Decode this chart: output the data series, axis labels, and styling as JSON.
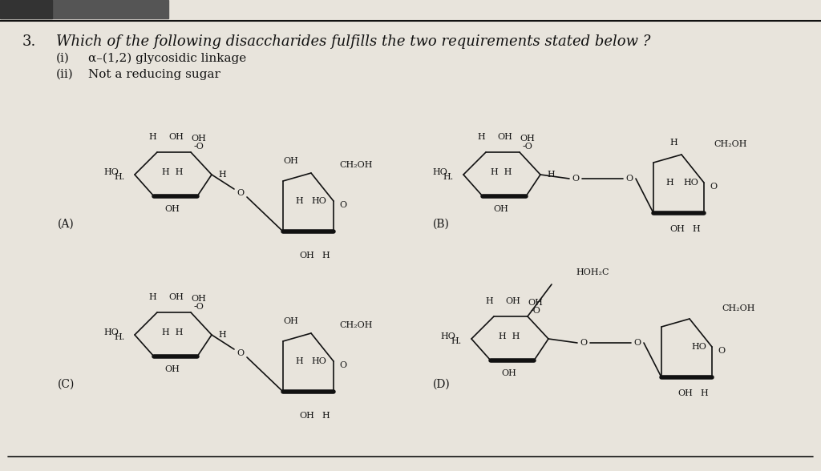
{
  "background_color": "#e8e4dc",
  "text_color": "#1a1a1a",
  "title_num": "3.",
  "title_text": "Which of the following disaccharides fulfills the two requirements stated below ?",
  "req1_num": "(i)",
  "req1_text": "α–(1,2) glycosidic linkage",
  "req2_num": "(ii)",
  "req2_text": "Not a reducing sugar",
  "label_A": "(A)",
  "label_B": "(B)",
  "label_C": "(C)",
  "label_D": "(D)",
  "header_bar_color": "#888888",
  "line_color": "#111111"
}
